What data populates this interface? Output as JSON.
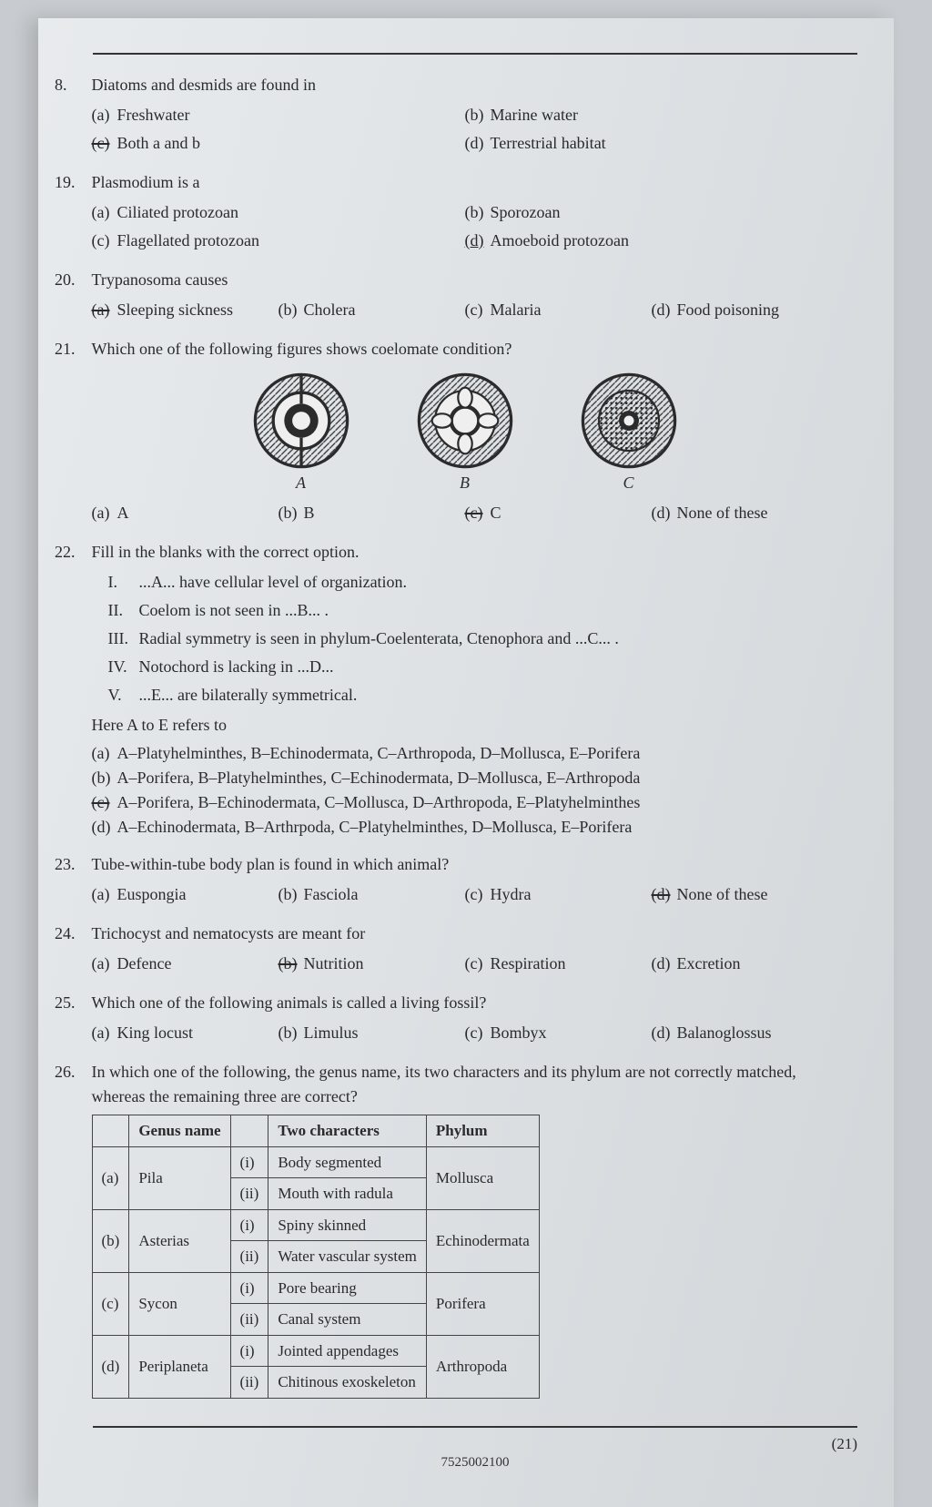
{
  "q8": {
    "num": "8.",
    "stem": "Diatoms and desmids are found in",
    "a": "Freshwater",
    "b": "Marine water",
    "c": "Both a and b",
    "d": "Terrestrial habitat"
  },
  "q19": {
    "num": "19.",
    "stem": "Plasmodium is a",
    "a": "Ciliated protozoan",
    "b": "Sporozoan",
    "c": "Flagellated protozoan",
    "d": "Amoeboid protozoan"
  },
  "q20": {
    "num": "20.",
    "stem": "Trypanosoma causes",
    "a": "Sleeping sickness",
    "b": "Cholera",
    "c": "Malaria",
    "d": "Food poisoning"
  },
  "q21": {
    "num": "21.",
    "stem": "Which one of the following figures shows coelomate condition?",
    "figA": "A",
    "figB": "B",
    "figC": "C",
    "a": "A",
    "b": "B",
    "c": "C",
    "d": "None of these"
  },
  "q22": {
    "num": "22.",
    "stem": "Fill in the blanks with the correct option.",
    "i": "...A... have cellular level of organization.",
    "ii": "Coelom is not seen in ...B... .",
    "iii": "Radial symmetry is seen in phylum-Coelenterata, Ctenophora and ...C... .",
    "iv": "Notochord is lacking in ...D...",
    "v": "...E... are bilaterally symmetrical.",
    "here": "Here A to E refers to",
    "a": "A–Platyhelminthes, B–Echinodermata, C–Arthropoda, D–Mollusca, E–Porifera",
    "b": "A–Porifera, B–Platyhelminthes, C–Echinodermata, D–Mollusca, E–Arthropoda",
    "c": "A–Porifera, B–Echinodermata, C–Mollusca, D–Arthropoda, E–Platyhelminthes",
    "d": "A–Echinodermata, B–Arthrpoda, C–Platyhelminthes, D–Mollusca, E–Porifera"
  },
  "q23": {
    "num": "23.",
    "stem": "Tube-within-tube body plan is found in which animal?",
    "a": "Euspongia",
    "b": "Fasciola",
    "c": "Hydra",
    "d": "None of these"
  },
  "q24": {
    "num": "24.",
    "stem": "Trichocyst and nematocysts are meant for",
    "a": "Defence",
    "b": "Nutrition",
    "c": "Respiration",
    "d": "Excretion"
  },
  "q25": {
    "num": "25.",
    "stem": "Which one of the following animals is called a living fossil?",
    "a": "King locust",
    "b": "Limulus",
    "c": "Bombyx",
    "d": "Balanoglossus"
  },
  "q26": {
    "num": "26.",
    "stem": "In which one of the following, the genus name, its two characters and its phylum are not correctly matched, whereas the remaining three are correct?",
    "th_genus": "Genus name",
    "th_chars": "Two characters",
    "th_phylum": "Phylum",
    "rows": [
      {
        "opt": "(a)",
        "genus": "Pila",
        "c1n": "(i)",
        "c1": "Body segmented",
        "phylum": "Mollusca",
        "c2n": "(ii)",
        "c2": "Mouth with radula"
      },
      {
        "opt": "(b)",
        "genus": "Asterias",
        "c1n": "(i)",
        "c1": "Spiny skinned",
        "phylum": "Echinodermata",
        "c2n": "(ii)",
        "c2": "Water vascular system"
      },
      {
        "opt": "(c)",
        "genus": "Sycon",
        "c1n": "(i)",
        "c1": "Pore bearing",
        "phylum": "Porifera",
        "c2n": "(ii)",
        "c2": "Canal system"
      },
      {
        "opt": "(d)",
        "genus": "Periplaneta",
        "c1n": "(i)",
        "c1": "Jointed appendages",
        "phylum": "Arthropoda",
        "c2n": "(ii)",
        "c2": "Chitinous exoskeleton"
      }
    ]
  },
  "pagenum": "(21)",
  "footcode": "7525002100",
  "labels": {
    "a": "(a)",
    "b": "(b)",
    "c": "(c)",
    "d": "(d)",
    "c_strike": "(c)",
    "a_strike": "(a)",
    "b_strike": "(b)",
    "d_strike": "(d)",
    "I": "I.",
    "II": "II.",
    "III": "III.",
    "IV": "IV.",
    "V": "V."
  },
  "figcolors": {
    "outer": "#2b2b2b",
    "hatch": "#3a3a3a",
    "inner": "#2b2b2b",
    "white": "#efefef"
  }
}
